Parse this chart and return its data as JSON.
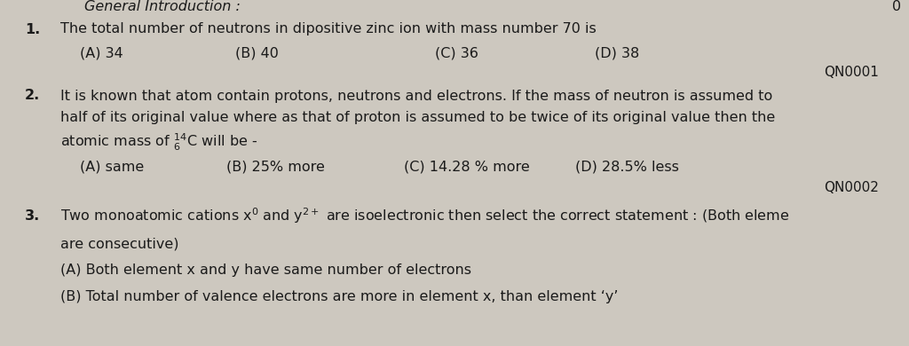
{
  "bg_color": "#cdc8bf",
  "text_color": "#1a1a1a",
  "q1_num": "1.",
  "q1_text": "The total number of neutrons in dipositive zinc ion with mass number 70 is",
  "q1_options": [
    "(A) 34",
    "(B) 40",
    "(C) 36",
    "(D) 38"
  ],
  "q1_label": "QN0001",
  "q2_num": "2.",
  "q2_line1": "It is known that atom contain protons, neutrons and electrons. If the mass of neutron is assumed to",
  "q2_line2": "half of its original value where as that of proton is assumed to be twice of its original value then the",
  "q2_line3a": "atomic mass of ",
  "q2_line3b": "$^{14}_6$C will be -",
  "q2_options": [
    "(A) same",
    "(B) 25% more",
    "(C) 14.28 % more",
    "(D) 28.5% less"
  ],
  "q2_label": "QN0002",
  "q3_num": "3.",
  "q3_line1": "Two monoatomic cations x$^0$ and y$^{2+}$ are isoelectronic then select the correct statement : (Both eleme",
  "q3_line2": "are consecutive)",
  "q3_line3": "(A) Both element x and y have same number of electrons",
  "q3_line4": "(B) Total number of valence electrons are more in element x, than element ‘y’",
  "top_partial": "General Introduction :",
  "top_right": "0",
  "fs_main": 11.5,
  "fs_label": 11.0
}
